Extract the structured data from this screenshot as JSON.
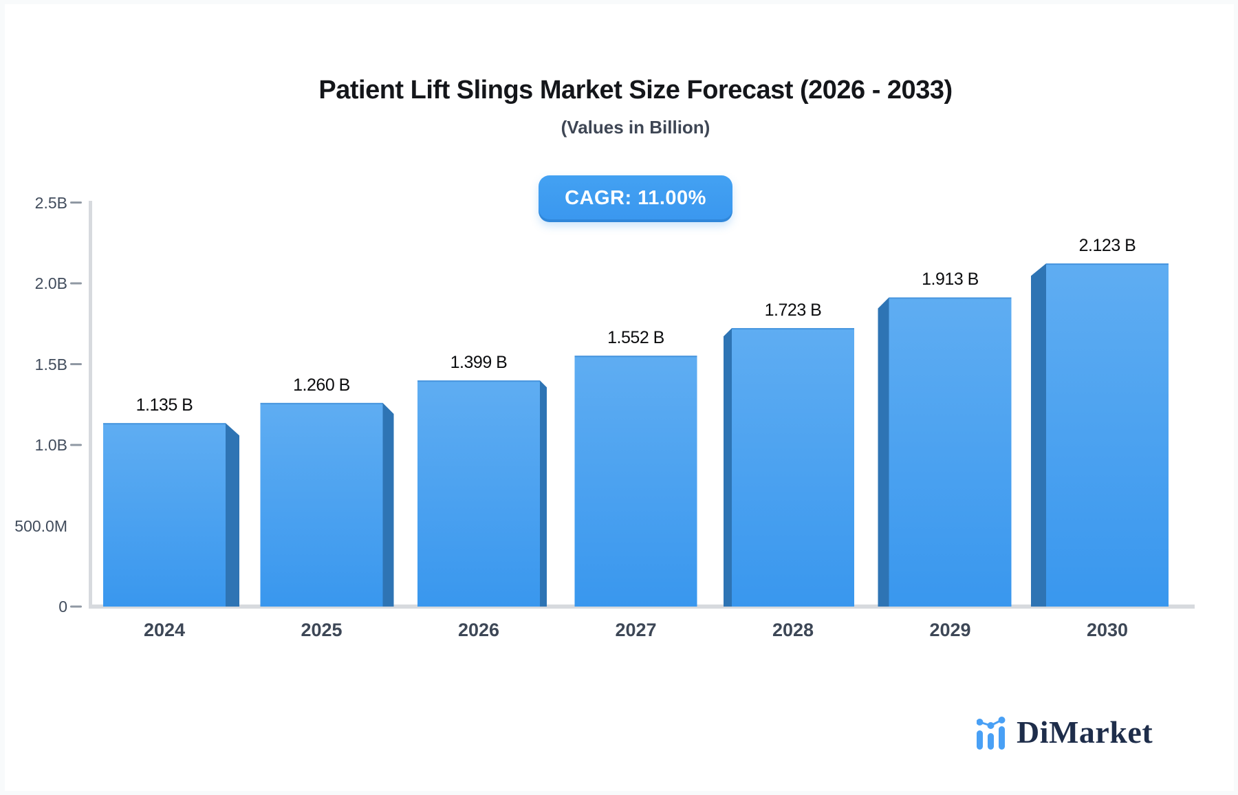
{
  "header": {
    "cagr_label": "CAGR: 11.00%"
  },
  "chart_data": {
    "type": "bar",
    "title": "Patient Lift Slings Market Size Forecast (2026 - 2033)",
    "subtitle": "(Values in Billion)",
    "cagr_label": "CAGR: 11.00%",
    "categories": [
      "2024",
      "2025",
      "2026",
      "2027",
      "2028",
      "2029",
      "2030"
    ],
    "values": [
      1.135,
      1.26,
      1.399,
      1.552,
      1.723,
      1.913,
      2.123
    ],
    "value_labels": [
      "1.135 B",
      "1.260 B",
      "1.399 B",
      "1.552 B",
      "1.723 B",
      "1.913 B",
      "2.123 B"
    ],
    "yticks": [
      {
        "label": "2.5B",
        "value": 2.5,
        "dash": true
      },
      {
        "label": "2.0B",
        "value": 2.0,
        "dash": true
      },
      {
        "label": "1.5B",
        "value": 1.5,
        "dash": true
      },
      {
        "label": "1.0B",
        "value": 1.0,
        "dash": true
      },
      {
        "label": "500.0M",
        "value": 0.5,
        "dash": false
      },
      {
        "label": "0",
        "value": 0.0,
        "dash": true
      }
    ],
    "ylim": [
      0,
      2.5
    ],
    "xlabel": "",
    "ylabel": "",
    "legend": "none",
    "grid": "off",
    "colors": {
      "bar_top": "#5fadf2",
      "bar_bottom": "#3997ee",
      "bar_side": "#2e74b4",
      "bar_top_edge": "#4795de",
      "axis_line": "#d7dade",
      "tick_dash": "#8f98a3",
      "badge_blue": "#3e9cf0"
    }
  },
  "logo": {
    "text": "DiMarket",
    "icon": "bar-chart-sparkline-icon",
    "navy": "#1e2d4a",
    "blue": "#49a0f5"
  }
}
